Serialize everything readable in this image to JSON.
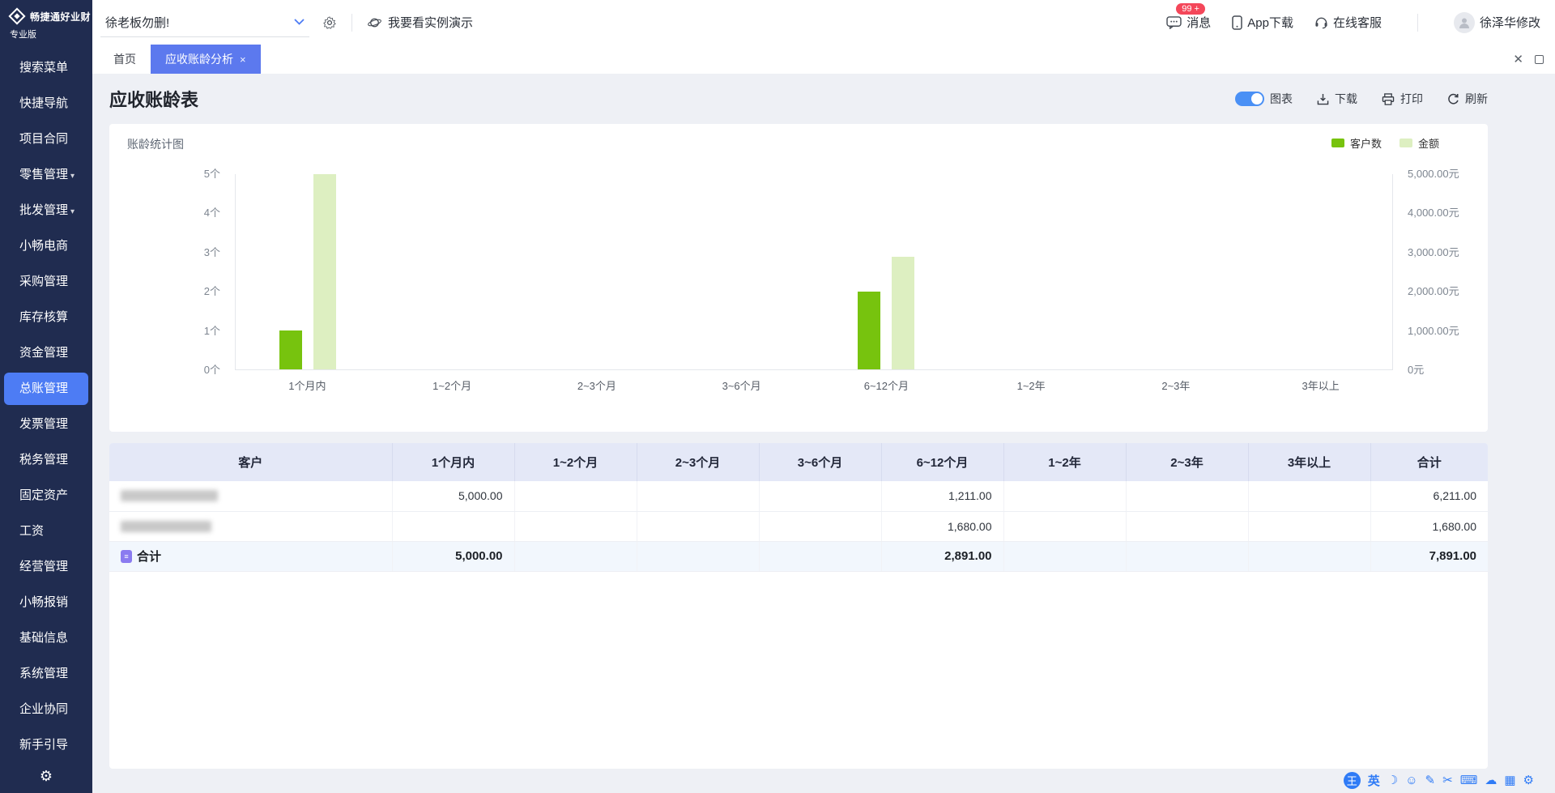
{
  "app": {
    "brand": "畅捷通好业财",
    "edition": "专业版"
  },
  "sidebar": {
    "items": [
      {
        "label": "搜索菜单",
        "arrow": false,
        "active": false
      },
      {
        "label": "快捷导航",
        "arrow": false,
        "active": false
      },
      {
        "label": "项目合同",
        "arrow": false,
        "active": false
      },
      {
        "label": "零售管理",
        "arrow": true,
        "active": false
      },
      {
        "label": "批发管理",
        "arrow": true,
        "active": false
      },
      {
        "label": "小畅电商",
        "arrow": false,
        "active": false
      },
      {
        "label": "采购管理",
        "arrow": false,
        "active": false
      },
      {
        "label": "库存核算",
        "arrow": false,
        "active": false
      },
      {
        "label": "资金管理",
        "arrow": false,
        "active": false
      },
      {
        "label": "总账管理",
        "arrow": false,
        "active": true
      },
      {
        "label": "发票管理",
        "arrow": false,
        "active": false
      },
      {
        "label": "税务管理",
        "arrow": false,
        "active": false
      },
      {
        "label": "固定资产",
        "arrow": false,
        "active": false
      },
      {
        "label": "工资",
        "arrow": false,
        "active": false
      },
      {
        "label": "经营管理",
        "arrow": false,
        "active": false
      },
      {
        "label": "小畅报销",
        "arrow": false,
        "active": false
      },
      {
        "label": "基础信息",
        "arrow": false,
        "active": false
      },
      {
        "label": "系统管理",
        "arrow": false,
        "active": false
      },
      {
        "label": "企业协同",
        "arrow": false,
        "active": false
      },
      {
        "label": "新手引导",
        "arrow": false,
        "active": false
      }
    ]
  },
  "topbar": {
    "account": "徐老板勿删!",
    "demo_link": "我要看实例演示",
    "messages_label": "消息",
    "messages_badge": "99 +",
    "app_download_label": "App下载",
    "support_label": "在线客服",
    "username": "徐泽华修改"
  },
  "tabs": [
    {
      "label": "首页",
      "active": false,
      "closable": false
    },
    {
      "label": "应收账龄分析",
      "active": true,
      "closable": true
    }
  ],
  "page": {
    "title": "应收账龄表",
    "controls": {
      "chart_toggle": "图表",
      "download": "下载",
      "print": "打印",
      "refresh": "刷新"
    }
  },
  "chart_data": {
    "type": "bar",
    "title": "账龄统计图",
    "categories": [
      "1个月内",
      "1~2个月",
      "2~3个月",
      "3~6个月",
      "6~12个月",
      "1~2年",
      "2~3年",
      "3年以上"
    ],
    "series": [
      {
        "name": "客户数",
        "color": "#77c30e",
        "axis": "left",
        "values": [
          1,
          0,
          0,
          0,
          2,
          0,
          0,
          0
        ]
      },
      {
        "name": "金额",
        "color": "#ddefc1",
        "axis": "right",
        "values": [
          5000,
          0,
          0,
          0,
          2891,
          0,
          0,
          0
        ]
      }
    ],
    "left_axis": {
      "ticks": [
        "0个",
        "1个",
        "2个",
        "3个",
        "4个",
        "5个"
      ],
      "max": 5,
      "label_suffix": "个"
    },
    "right_axis": {
      "ticks": [
        "0元",
        "1,000.00元",
        "2,000.00元",
        "3,000.00元",
        "4,000.00元",
        "5,000.00元"
      ],
      "max": 5000
    },
    "legend_position": "top-right",
    "grid": false
  },
  "table": {
    "columns": [
      "客户",
      "1个月内",
      "1~2个月",
      "2~3个月",
      "3~6个月",
      "6~12个月",
      "1~2年",
      "2~3年",
      "3年以上",
      "合计"
    ],
    "rows": [
      {
        "customer_blurred": true,
        "cells": [
          "5,000.00",
          "",
          "",
          "",
          "1,211.00",
          "",
          "",
          "",
          "6,211.00"
        ]
      },
      {
        "customer_blurred": true,
        "cells": [
          "",
          "",
          "",
          "",
          "1,680.00",
          "",
          "",
          "",
          "1,680.00"
        ]
      }
    ],
    "total": {
      "label": "合计",
      "icon": "total-icon",
      "cells": [
        "5,000.00",
        "",
        "",
        "",
        "2,891.00",
        "",
        "",
        "",
        "7,891.00"
      ]
    }
  },
  "ime": {
    "items": [
      {
        "name": "chinese-mode-icon",
        "glyph": "王"
      },
      {
        "name": "english-mode-icon",
        "glyph": "英"
      },
      {
        "name": "halfwidth-icon",
        "glyph": "☽"
      },
      {
        "name": "emoji-icon",
        "glyph": "☺"
      },
      {
        "name": "handwriting-icon",
        "glyph": "✎"
      },
      {
        "name": "screenshot-icon",
        "glyph": "✂"
      },
      {
        "name": "keyboard-icon",
        "glyph": "⌨"
      },
      {
        "name": "cloud-icon",
        "glyph": "☁"
      },
      {
        "name": "skin-icon",
        "glyph": "▦"
      },
      {
        "name": "toolbox-icon",
        "glyph": "⚙"
      }
    ]
  },
  "colors": {
    "accent_blue": "#4d7cf4",
    "tab_blue": "#5c79ee",
    "sidebar_navy": "#202c50",
    "badge_red": "#f4475a",
    "bar_green": "#77c30e",
    "bar_light_green": "#ddefc1"
  }
}
